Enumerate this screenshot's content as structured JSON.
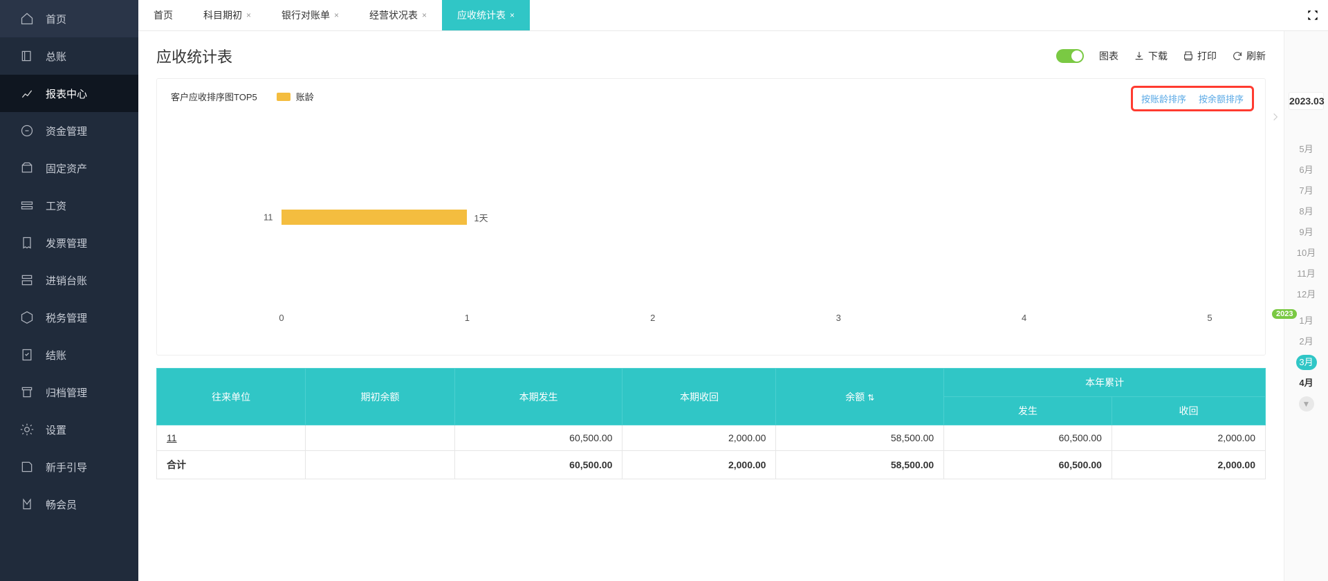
{
  "sidebar": {
    "items": [
      {
        "label": "首页",
        "icon": "home"
      },
      {
        "label": "总账",
        "icon": "ledger"
      },
      {
        "label": "报表中心",
        "icon": "chart",
        "active": true
      },
      {
        "label": "资金管理",
        "icon": "money"
      },
      {
        "label": "固定资产",
        "icon": "asset"
      },
      {
        "label": "工资",
        "icon": "salary"
      },
      {
        "label": "发票管理",
        "icon": "invoice"
      },
      {
        "label": "进销台账",
        "icon": "stock"
      },
      {
        "label": "税务管理",
        "icon": "tax"
      },
      {
        "label": "结账",
        "icon": "close-period"
      },
      {
        "label": "归档管理",
        "icon": "archive"
      },
      {
        "label": "设置",
        "icon": "gear"
      },
      {
        "label": "新手引导",
        "icon": "guide"
      },
      {
        "label": "畅会员",
        "icon": "vip"
      }
    ]
  },
  "tabs": [
    {
      "label": "首页",
      "closable": false
    },
    {
      "label": "科目期初",
      "closable": true
    },
    {
      "label": "银行对账单",
      "closable": true
    },
    {
      "label": "经营状况表",
      "closable": true
    },
    {
      "label": "应收统计表",
      "closable": true,
      "active": true
    }
  ],
  "page": {
    "title": "应收统计表",
    "actions": {
      "chart_toggle_label": "图表",
      "download": "下载",
      "print": "打印",
      "refresh": "刷新"
    }
  },
  "chart": {
    "type": "bar-horizontal",
    "title": "客户应收排序图TOP5",
    "legend_label": "账龄",
    "legend_color": "#f4bd3f",
    "sort_options": [
      "按账龄排序",
      "按余额排序"
    ],
    "y_category": "11",
    "bar_value": 1,
    "bar_value_label": "1天",
    "bar_color": "#f4bd3f",
    "xlim": [
      0,
      5
    ],
    "xtick_step": 1,
    "xticks": [
      "0",
      "1",
      "2",
      "3",
      "4",
      "5"
    ],
    "background_color": "#ffffff",
    "highlight_border_color": "#ff3b30"
  },
  "table": {
    "header_bg": "#30c6c6",
    "header_text_color": "#ffffff",
    "columns": {
      "unit": "往来单位",
      "opening": "期初余额",
      "occur": "本期发生",
      "recover": "本期收回",
      "balance": "余额",
      "year_group": "本年累计",
      "year_occur": "发生",
      "year_recover": "收回"
    },
    "rows": [
      {
        "unit": "11",
        "opening": "",
        "occur": "60,500.00",
        "recover": "2,000.00",
        "balance": "58,500.00",
        "year_occur": "60,500.00",
        "year_recover": "2,000.00"
      }
    ],
    "total": {
      "label": "合计",
      "opening": "",
      "occur": "60,500.00",
      "recover": "2,000.00",
      "balance": "58,500.00",
      "year_occur": "60,500.00",
      "year_recover": "2,000.00"
    }
  },
  "period": {
    "year_display": "2023.03",
    "badge_year": "2023",
    "months": [
      "5月",
      "6月",
      "7月",
      "8月",
      "9月",
      "10月",
      "11月",
      "12月",
      "1月",
      "2月",
      "3月",
      "4月"
    ],
    "badge_before_index": 8,
    "current_index": 10,
    "strong_index": 11
  }
}
